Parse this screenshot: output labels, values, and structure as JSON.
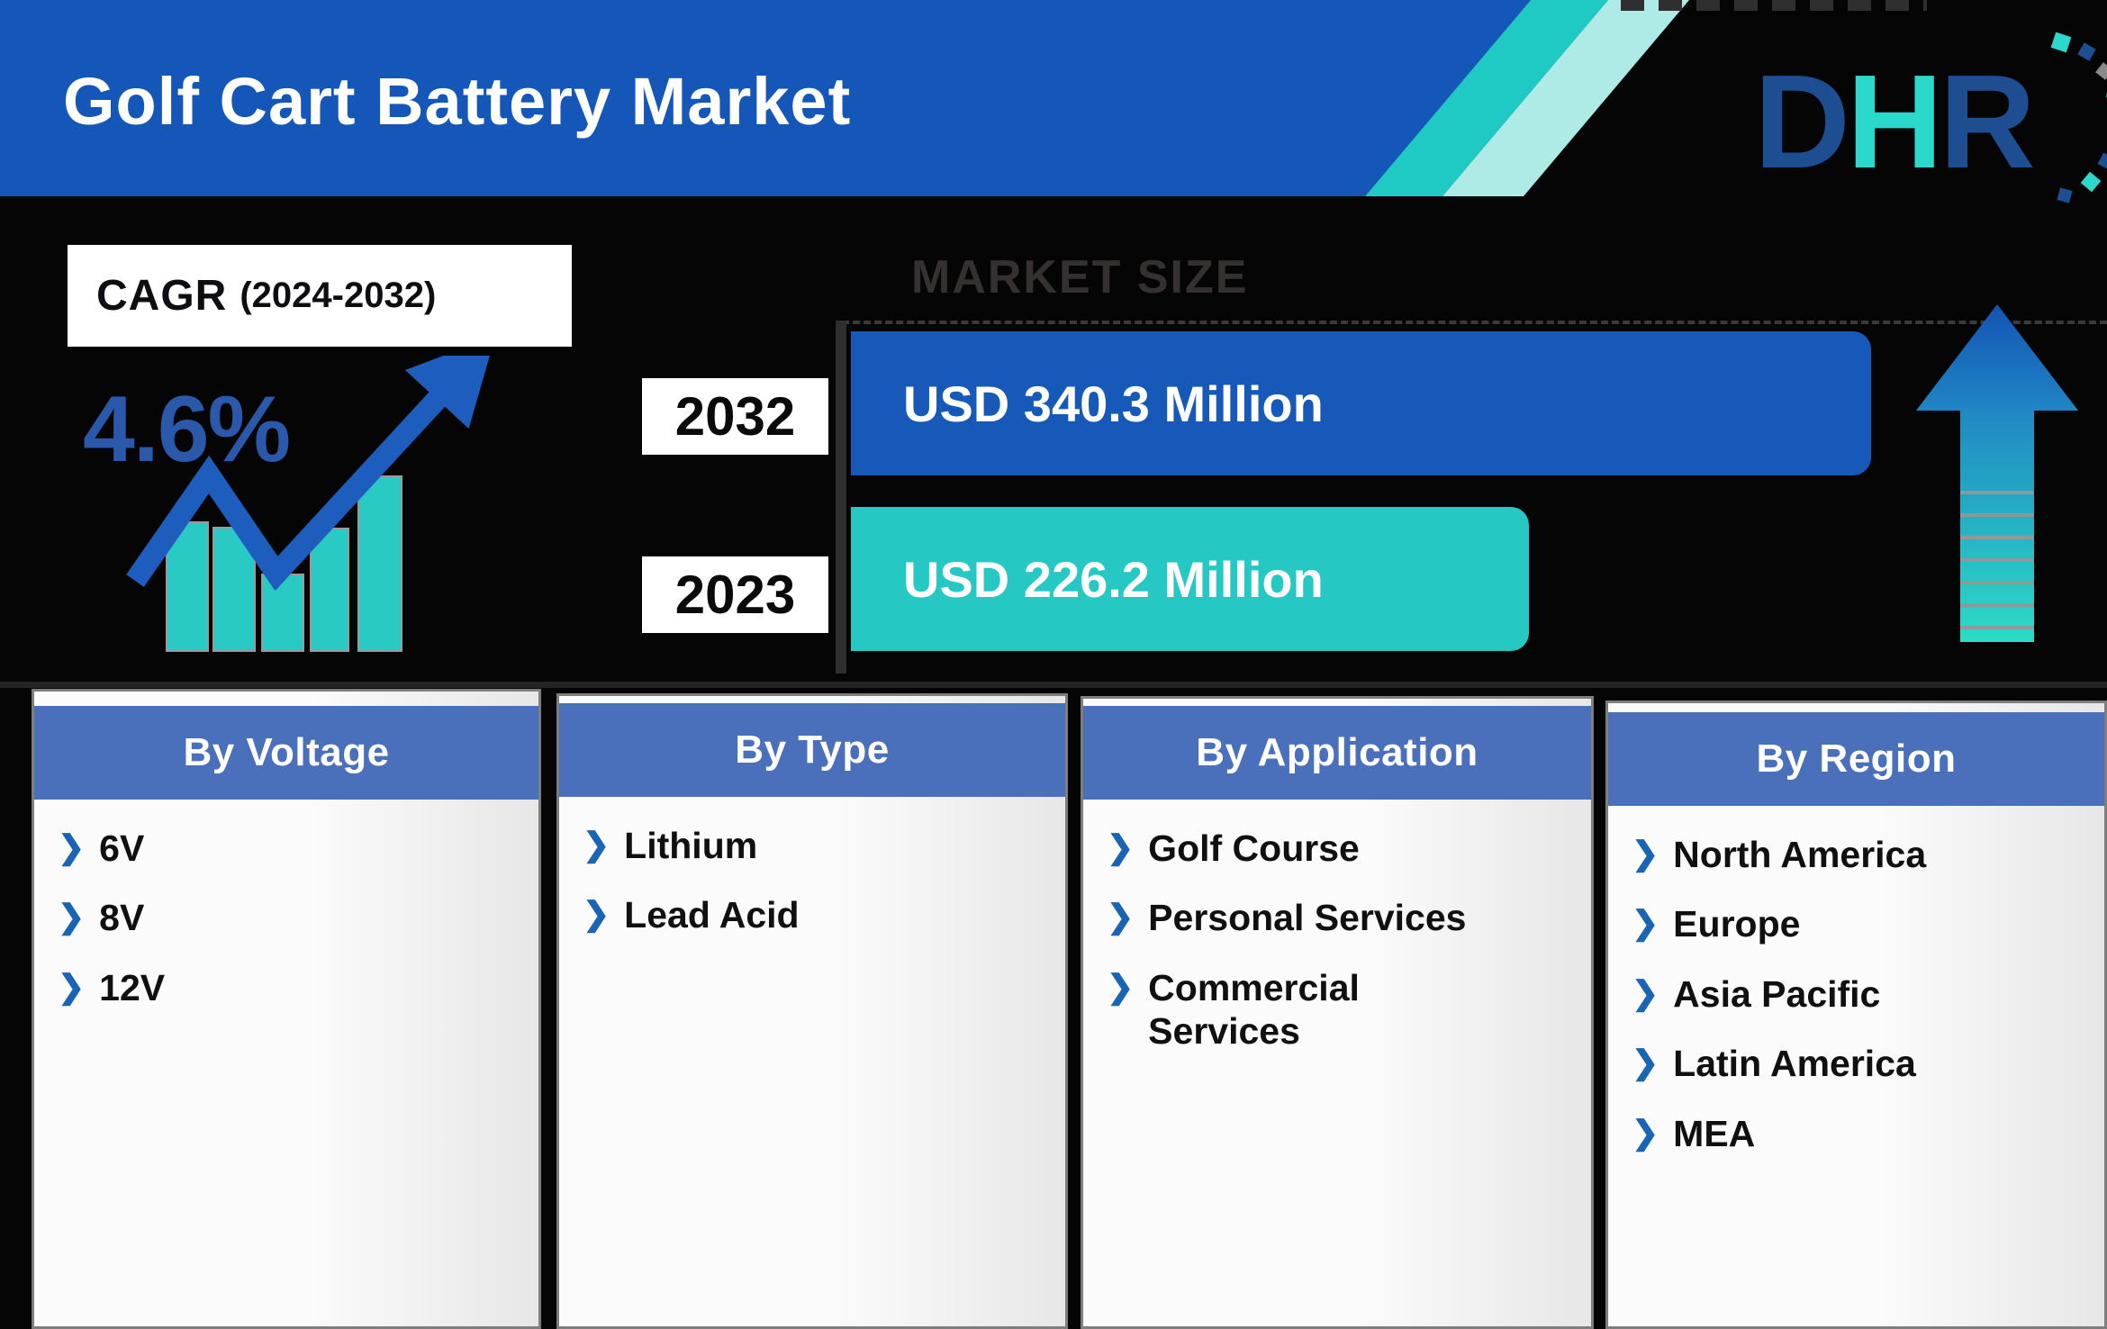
{
  "header": {
    "title": "Golf Cart Battery Market",
    "logo_letters": {
      "d": "D",
      "h": "H",
      "r": "R"
    }
  },
  "cagr": {
    "label": "CAGR",
    "period": "(2024-2032)",
    "value": "4.6%"
  },
  "market_size": {
    "title": "MARKET SIZE",
    "rows": [
      {
        "year": "2032",
        "value_label": "USD 340.3 Million"
      },
      {
        "year": "2023",
        "value_label": "USD 226.2 Million"
      }
    ]
  },
  "chart_data": {
    "type": "bar",
    "orientation": "horizontal",
    "title": "MARKET SIZE",
    "categories": [
      "2032",
      "2023"
    ],
    "values": [
      340.3,
      226.2
    ],
    "unit": "USD Million",
    "data_labels": [
      "USD 340.3 Million",
      "USD 226.2 Million"
    ],
    "bar_colors": [
      "#1659b8",
      "#25c8c3"
    ],
    "cagr_percent": 4.6,
    "cagr_period": "2024-2032",
    "legend": "none",
    "grid": "off"
  },
  "columns": [
    {
      "title": "By Voltage",
      "items": [
        "6V",
        "8V",
        "12V"
      ]
    },
    {
      "title": "By Type",
      "items": [
        "Lithium",
        "Lead Acid"
      ]
    },
    {
      "title": "By Application",
      "items": [
        "Golf Course",
        "Personal Services",
        "Commercial\nServices"
      ]
    },
    {
      "title": "By Region",
      "items": [
        "North America",
        "Europe",
        "Asia Pacific",
        "Latin America",
        "MEA"
      ]
    }
  ],
  "colors": {
    "header_blue": "#1457b8",
    "stripe_teal": "#1fc9c4",
    "stripe_light_teal": "#aeeae6",
    "bar_blue": "#1659b8",
    "bar_teal": "#25c8c3",
    "column_header_blue": "#4a70bc",
    "cagr_value_blue": "#2a58ab",
    "logo_navy": "#1e4e92",
    "logo_teal": "#2ad8cc",
    "background": "#050505"
  }
}
